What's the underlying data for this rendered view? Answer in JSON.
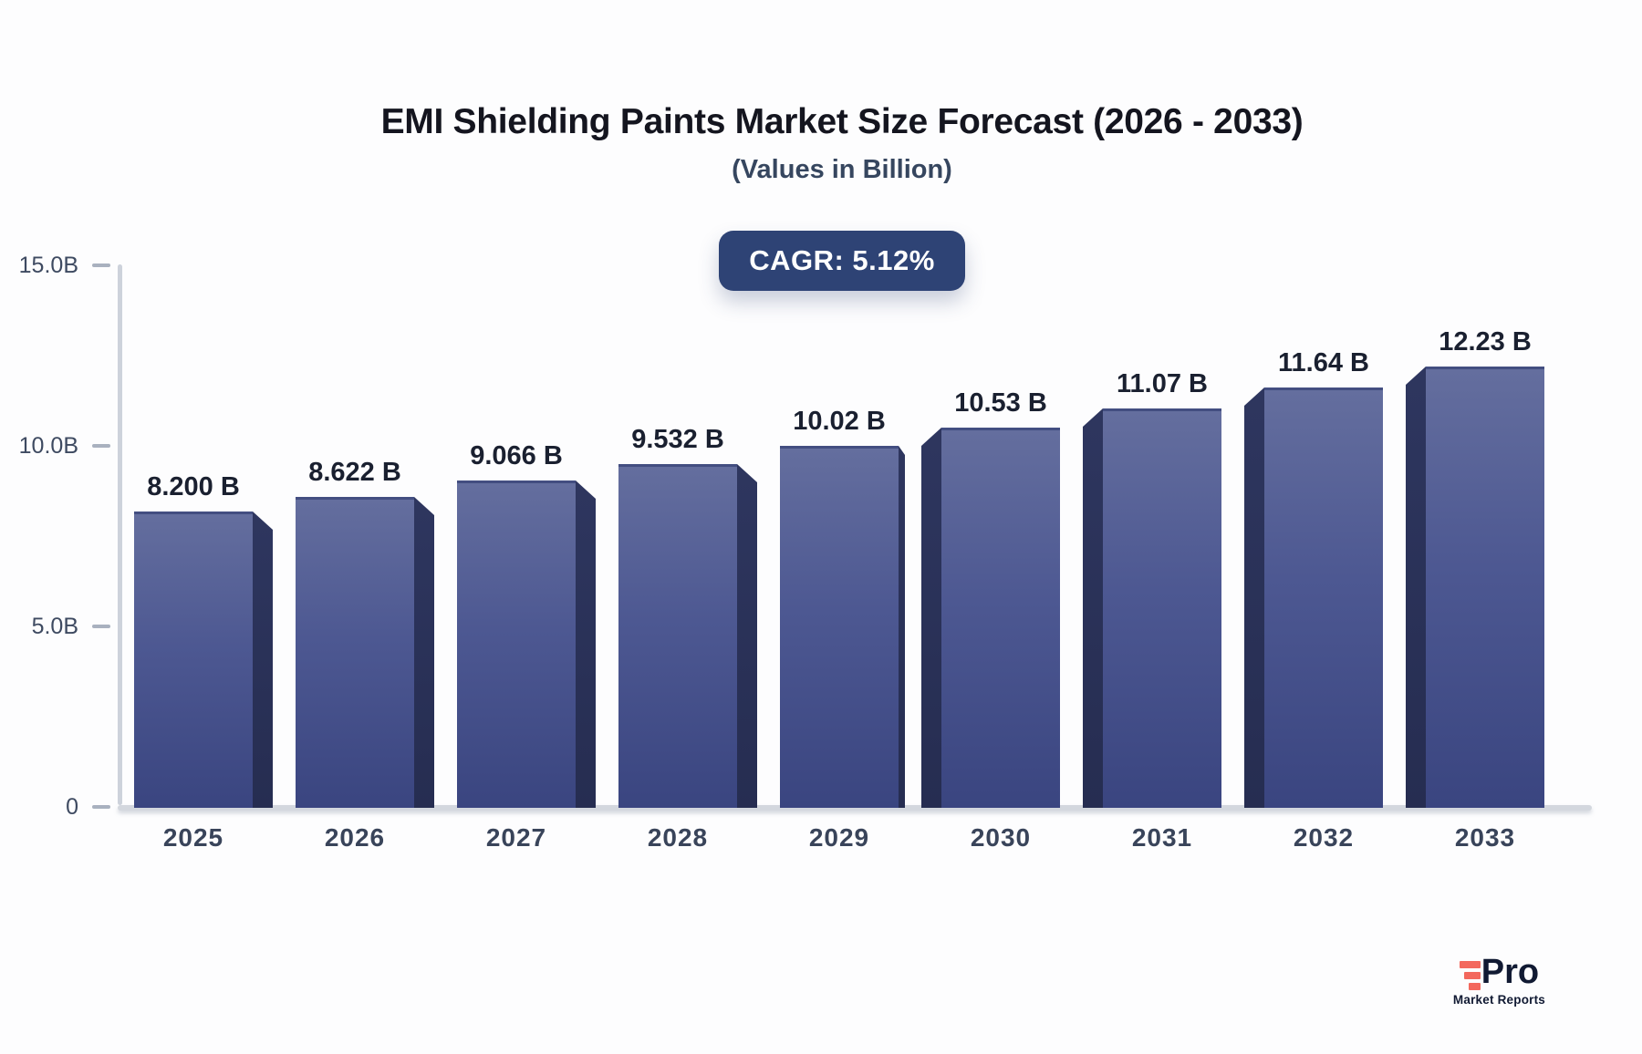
{
  "header": {
    "title": "EMI Shielding Paints Market Size Forecast (2026 - 2033)",
    "subtitle": "(Values in Billion)",
    "cagr_badge": "CAGR: 5.12%"
  },
  "chart_data": {
    "type": "bar",
    "title": "EMI Shielding Paints Market Size Forecast (2026 - 2033)",
    "subtitle": "(Values in Billion)",
    "cagr_percent": 5.12,
    "categories": [
      "2025",
      "2026",
      "2027",
      "2028",
      "2029",
      "2030",
      "2031",
      "2032",
      "2033"
    ],
    "values": [
      8.2,
      8.622,
      9.066,
      9.532,
      10.02,
      10.53,
      11.07,
      11.64,
      12.23
    ],
    "value_labels": [
      "8.200 B",
      "8.622 B",
      "9.066 B",
      "9.532 B",
      "10.02 B",
      "10.53 B",
      "11.07 B",
      "11.64 B",
      "12.23 B"
    ],
    "xlabel": "",
    "ylabel": "",
    "ylim": [
      0,
      15
    ],
    "y_ticks": [
      0,
      5,
      10,
      15
    ],
    "y_tick_labels": [
      "0",
      "5.0B",
      "10.0B",
      "15.0B"
    ],
    "grid": "off",
    "legend": "none",
    "bar_style": "3d"
  },
  "colors": {
    "bar_face_top": "#646e9e",
    "bar_face_bottom": "#3a4580",
    "bar_side": "#2a315a",
    "badge_bg": "#2e4375",
    "badge_text": "#ffffff",
    "axis_line": "#cdd2db",
    "title_text": "#14151f",
    "subtitle_text": "#36465f",
    "tick_text": "#3e4a61",
    "logo_accent": "#f3685d",
    "logo_text": "#111a33"
  },
  "logo": {
    "brand": "Pro",
    "tagline": "Market Reports"
  }
}
